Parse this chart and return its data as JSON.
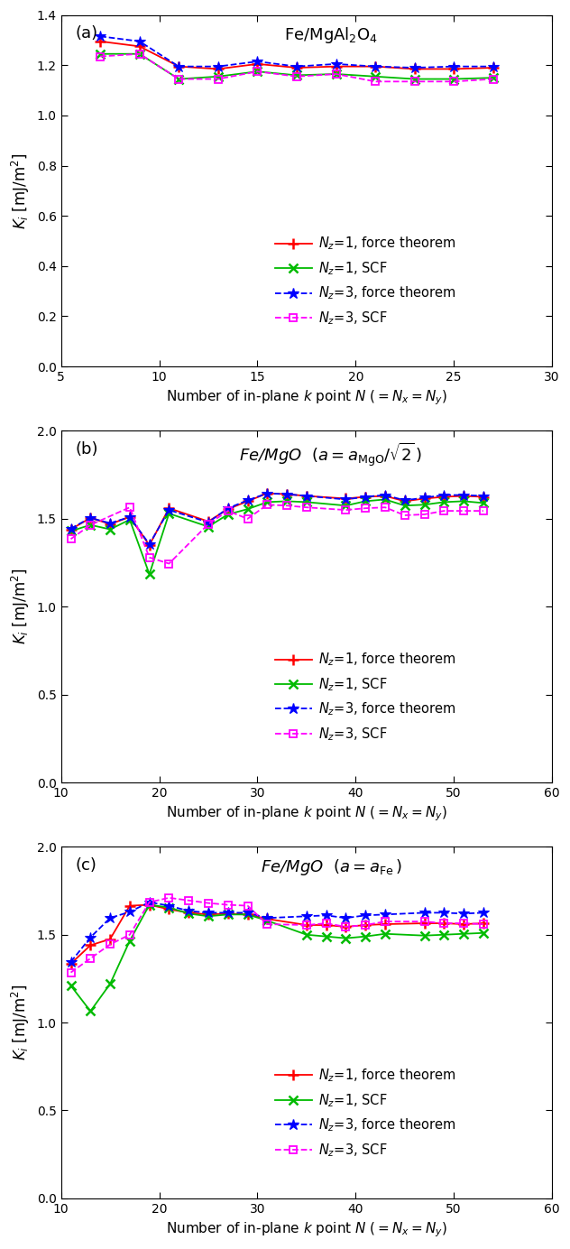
{
  "panel_a": {
    "title_parts": [
      "Fe/MgAl",
      "2",
      "O",
      "4"
    ],
    "title_text": "Fe/MgAl$_2$O$_4$",
    "label": "(a)",
    "xlim": [
      5,
      30
    ],
    "ylim": [
      0,
      1.4
    ],
    "xticks": [
      5,
      10,
      15,
      20,
      25,
      30
    ],
    "yticks": [
      0,
      0.2,
      0.4,
      0.6,
      0.8,
      1.0,
      1.2,
      1.4
    ],
    "series": {
      "nz1_ft": {
        "x": [
          7,
          9,
          11,
          13,
          15,
          17,
          19,
          21,
          23,
          25,
          27
        ],
        "y": [
          1.295,
          1.275,
          1.195,
          1.185,
          1.205,
          1.19,
          1.195,
          1.195,
          1.185,
          1.185,
          1.19
        ]
      },
      "nz1_scf": {
        "x": [
          7,
          9,
          11,
          13,
          15,
          17,
          19,
          21,
          23,
          25,
          27
        ],
        "y": [
          1.245,
          1.245,
          1.145,
          1.155,
          1.175,
          1.16,
          1.165,
          1.155,
          1.145,
          1.145,
          1.15
        ]
      },
      "nz3_ft": {
        "x": [
          7,
          9,
          11,
          13,
          15,
          17,
          19,
          21,
          23,
          25,
          27
        ],
        "y": [
          1.315,
          1.295,
          1.195,
          1.195,
          1.215,
          1.195,
          1.205,
          1.195,
          1.19,
          1.195,
          1.195
        ]
      },
      "nz3_scf": {
        "x": [
          7,
          9,
          11,
          13,
          15,
          17,
          19,
          21,
          23,
          25,
          27
        ],
        "y": [
          1.235,
          1.245,
          1.145,
          1.145,
          1.175,
          1.155,
          1.165,
          1.135,
          1.135,
          1.135,
          1.145
        ]
      }
    }
  },
  "panel_b": {
    "title_text": "Fe/MgO $( a = a_{\\mathrm{MgO}}/\\sqrt{2}$ )",
    "label": "(b)",
    "xlim": [
      10,
      60
    ],
    "ylim": [
      0,
      2.0
    ],
    "xticks": [
      10,
      20,
      30,
      40,
      50,
      60
    ],
    "yticks": [
      0,
      0.5,
      1.0,
      1.5,
      2.0
    ],
    "series": {
      "nz1_ft": {
        "x": [
          11,
          13,
          15,
          17,
          19,
          21,
          25,
          27,
          29,
          31,
          33,
          35,
          39,
          41,
          43,
          45,
          47,
          49,
          51,
          53
        ],
        "y": [
          1.44,
          1.505,
          1.47,
          1.51,
          1.35,
          1.56,
          1.485,
          1.555,
          1.6,
          1.645,
          1.64,
          1.63,
          1.615,
          1.625,
          1.63,
          1.6,
          1.615,
          1.625,
          1.63,
          1.625
        ]
      },
      "nz1_scf": {
        "x": [
          11,
          13,
          15,
          17,
          19,
          21,
          25,
          27,
          29,
          31,
          33,
          35,
          39,
          41,
          43,
          45,
          47,
          49,
          51,
          53
        ],
        "y": [
          1.43,
          1.465,
          1.44,
          1.495,
          1.185,
          1.53,
          1.455,
          1.525,
          1.555,
          1.595,
          1.6,
          1.595,
          1.575,
          1.6,
          1.61,
          1.575,
          1.58,
          1.595,
          1.6,
          1.59
        ]
      },
      "nz3_ft": {
        "x": [
          11,
          13,
          15,
          17,
          19,
          21,
          25,
          27,
          29,
          31,
          33,
          35,
          39,
          41,
          43,
          45,
          47,
          49,
          51,
          53
        ],
        "y": [
          1.445,
          1.505,
          1.475,
          1.51,
          1.355,
          1.55,
          1.48,
          1.56,
          1.605,
          1.645,
          1.64,
          1.63,
          1.61,
          1.625,
          1.635,
          1.605,
          1.62,
          1.635,
          1.635,
          1.63
        ]
      },
      "nz3_scf": {
        "x": [
          11,
          13,
          17,
          19,
          21,
          25,
          27,
          29,
          31,
          33,
          35,
          39,
          41,
          43,
          45,
          47,
          49,
          51,
          53
        ],
        "y": [
          1.385,
          1.465,
          1.565,
          1.28,
          1.245,
          1.47,
          1.545,
          1.5,
          1.58,
          1.575,
          1.565,
          1.55,
          1.56,
          1.565,
          1.52,
          1.525,
          1.545,
          1.545,
          1.545
        ]
      }
    }
  },
  "panel_c": {
    "title_text": "Fe/MgO $( a = a_{\\mathrm{Fe}}$ )",
    "label": "(c)",
    "xlim": [
      10,
      60
    ],
    "ylim": [
      0,
      2.0
    ],
    "xticks": [
      10,
      20,
      30,
      40,
      50,
      60
    ],
    "yticks": [
      0,
      0.5,
      1.0,
      1.5,
      2.0
    ],
    "series": {
      "nz1_ft": {
        "x": [
          11,
          13,
          15,
          17,
          19,
          21,
          23,
          25,
          27,
          29,
          31,
          35,
          37,
          39,
          41,
          43,
          47,
          49,
          51,
          53
        ],
        "y": [
          1.335,
          1.44,
          1.475,
          1.665,
          1.67,
          1.645,
          1.625,
          1.615,
          1.62,
          1.615,
          1.59,
          1.555,
          1.555,
          1.545,
          1.555,
          1.56,
          1.565,
          1.565,
          1.56,
          1.565
        ]
      },
      "nz1_scf": {
        "x": [
          11,
          13,
          15,
          17,
          19,
          21,
          23,
          25,
          27,
          29,
          31,
          35,
          37,
          39,
          41,
          43,
          47,
          49,
          51,
          53
        ],
        "y": [
          1.21,
          1.065,
          1.22,
          1.465,
          1.67,
          1.655,
          1.62,
          1.605,
          1.615,
          1.615,
          1.58,
          1.5,
          1.49,
          1.48,
          1.49,
          1.505,
          1.495,
          1.5,
          1.505,
          1.51
        ]
      },
      "nz3_ft": {
        "x": [
          11,
          13,
          15,
          17,
          19,
          21,
          23,
          25,
          27,
          29,
          31,
          35,
          37,
          39,
          41,
          43,
          47,
          49,
          51,
          53
        ],
        "y": [
          1.345,
          1.485,
          1.595,
          1.63,
          1.685,
          1.665,
          1.635,
          1.625,
          1.625,
          1.625,
          1.595,
          1.605,
          1.61,
          1.595,
          1.61,
          1.615,
          1.625,
          1.625,
          1.62,
          1.625
        ]
      },
      "nz3_scf": {
        "x": [
          11,
          13,
          15,
          17,
          19,
          21,
          23,
          25,
          27,
          29,
          31,
          35,
          37,
          39,
          41,
          43,
          47,
          49,
          51,
          53
        ],
        "y": [
          1.285,
          1.365,
          1.445,
          1.5,
          1.685,
          1.71,
          1.695,
          1.68,
          1.67,
          1.665,
          1.56,
          1.555,
          1.565,
          1.545,
          1.555,
          1.575,
          1.575,
          1.565,
          1.565,
          1.56
        ]
      }
    }
  },
  "colors": {
    "nz1_ft": "#ff0000",
    "nz1_scf": "#00bb00",
    "nz3_ft": "#0000ff",
    "nz3_scf": "#ff00ff"
  },
  "legend_labels": {
    "nz1_ft": "$N_z$=1, force theorem",
    "nz1_scf": "$N_z$=1, SCF",
    "nz3_ft": "$N_z$=3, force theorem",
    "nz3_scf": "$N_z$=3, SCF"
  },
  "ylabel": "$K_i$ [mJ/m$^2$]",
  "xlabel": "Number of in-plane $k$ point $N$ ($= N_x = N_y$)"
}
